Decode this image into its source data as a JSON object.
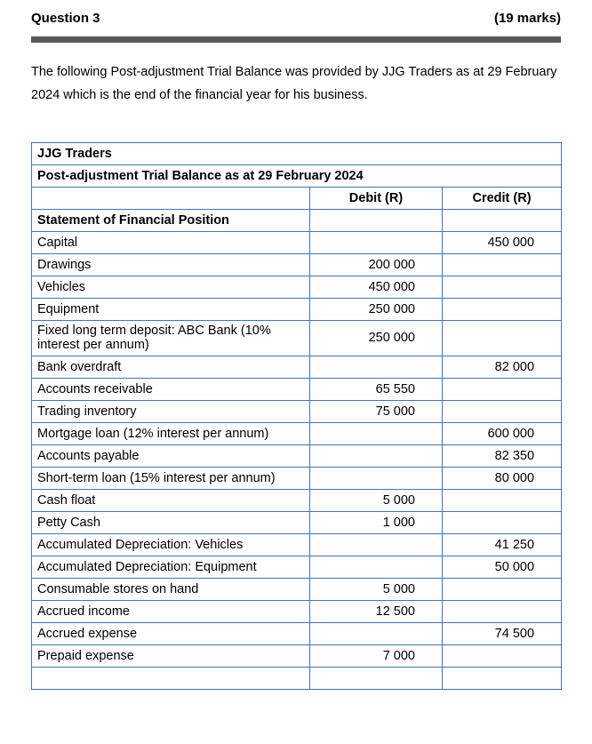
{
  "header": {
    "question_label": "Question 3",
    "marks_label": "(19 marks)"
  },
  "intro_text": "The following Post-adjustment Trial Balance was provided by JJG Traders as at 29 February 2024 which is the end of the financial year for his business.",
  "table": {
    "title": "JJG Traders",
    "subtitle": "Post-adjustment Trial Balance as at 29 February 2024",
    "columns": {
      "account": "",
      "debit": "Debit (R)",
      "credit": "Credit (R)"
    },
    "rows": [
      {
        "account": "Statement of Financial Position",
        "debit": "",
        "credit": "",
        "bold": true
      },
      {
        "account": "Capital",
        "debit": "",
        "credit": "450 000"
      },
      {
        "account": "Drawings",
        "debit": "200 000",
        "credit": ""
      },
      {
        "account": "Vehicles",
        "debit": "450 000",
        "credit": ""
      },
      {
        "account": "Equipment",
        "debit": "250 000",
        "credit": ""
      },
      {
        "account": "Fixed long term deposit: ABC Bank (10% interest per annum)",
        "debit": "250 000",
        "credit": ""
      },
      {
        "account": "Bank overdraft",
        "debit": "",
        "credit": "82 000"
      },
      {
        "account": "Accounts receivable",
        "debit": "65 550",
        "credit": ""
      },
      {
        "account": "Trading inventory",
        "debit": "75 000",
        "credit": ""
      },
      {
        "account": "Mortgage loan (12% interest per annum)",
        "debit": "",
        "credit": "600 000"
      },
      {
        "account": "Accounts payable",
        "debit": "",
        "credit": "82 350"
      },
      {
        "account": "Short-term loan (15% interest per annum)",
        "debit": "",
        "credit": "80 000"
      },
      {
        "account": "Cash float",
        "debit": "5 000",
        "credit": ""
      },
      {
        "account": "Petty Cash",
        "debit": "1 000",
        "credit": ""
      },
      {
        "account": "Accumulated Depreciation: Vehicles",
        "debit": "",
        "credit": "41 250"
      },
      {
        "account": "Accumulated Depreciation: Equipment",
        "debit": "",
        "credit": "50 000"
      },
      {
        "account": "Consumable stores on hand",
        "debit": "5 000",
        "credit": ""
      },
      {
        "account": "Accrued income",
        "debit": "12 500",
        "credit": ""
      },
      {
        "account": "Accrued expense",
        "debit": "",
        "credit": "74 500"
      },
      {
        "account": "Prepaid expense",
        "debit": "7 000",
        "credit": ""
      },
      {
        "account": "",
        "debit": "",
        "credit": ""
      }
    ]
  },
  "colors": {
    "table_border": "#4472c4",
    "divider_bar": "#595959"
  }
}
